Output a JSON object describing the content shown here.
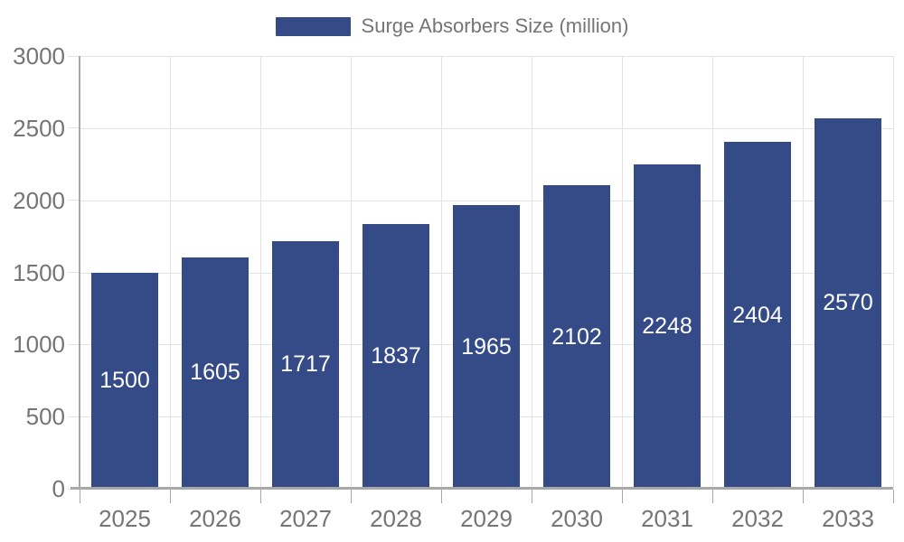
{
  "legend": {
    "label": "Surge Absorbers Size (million)"
  },
  "chart_data": {
    "type": "bar",
    "title": "",
    "xlabel": "",
    "ylabel": "",
    "categories": [
      "2025",
      "2026",
      "2027",
      "2028",
      "2029",
      "2030",
      "2031",
      "2032",
      "2033"
    ],
    "series": [
      {
        "name": "Surge Absorbers Size (million)",
        "values": [
          1500,
          1605,
          1717,
          1837,
          1965,
          2102,
          2248,
          2404,
          2570
        ]
      }
    ],
    "bar_value_labels": [
      "1500",
      "1605",
      "1717",
      "1837",
      "1965",
      "2102",
      "2248",
      "2404",
      "2570"
    ],
    "ylim": [
      0,
      3000
    ],
    "yticks": [
      0,
      500,
      1000,
      1500,
      2000,
      2500,
      3000
    ],
    "grid": true,
    "legend_position": "top-center",
    "value_label_position": "inside-center",
    "colors": {
      "bar": "#344b88",
      "bar_label_text": "#ffffff",
      "axis_line": "#a8a8a8",
      "gridline": "#e2e2e2",
      "tick_text": "#757575",
      "legend_text": "#757575",
      "background": "#ffffff"
    }
  }
}
